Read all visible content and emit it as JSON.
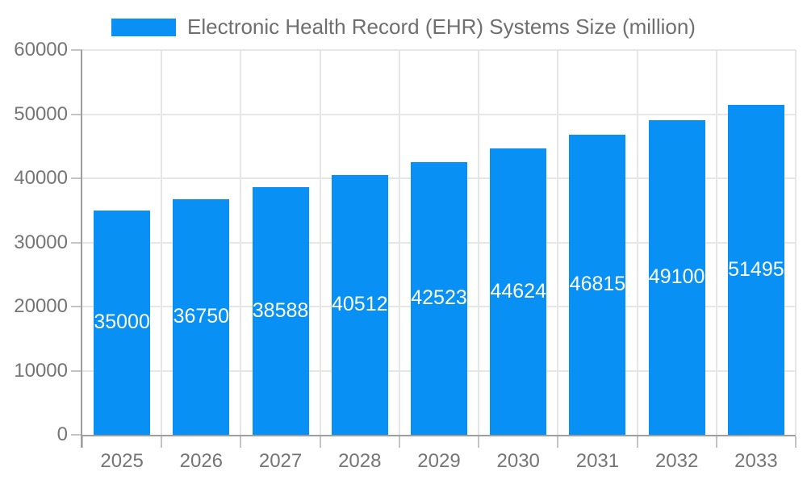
{
  "colors": {
    "bar": "#0890f4",
    "axis_line": "#9e9e9e",
    "gridline": "#e6e6e6",
    "tick_mark": "#c4c4c4",
    "tick_text": "#757575",
    "legend_text": "#6f6f6f",
    "bar_label_text": "#ffffff",
    "background": "#ffffff"
  },
  "legend": {
    "label": "Electronic Health Record (EHR) Systems Size (million)"
  },
  "chart_data": {
    "type": "bar",
    "title": "Electronic Health Record (EHR) Systems Size (million)",
    "categories": [
      "2025",
      "2026",
      "2027",
      "2028",
      "2029",
      "2030",
      "2031",
      "2032",
      "2033"
    ],
    "values": [
      35000,
      36750,
      38588,
      40512,
      42523,
      44624,
      46815,
      49100,
      51495
    ],
    "series_name": "Electronic Health Record (EHR) Systems Size (million)",
    "xlabel": "",
    "ylabel": "",
    "ylim": [
      0,
      60000
    ],
    "yticks": [
      0,
      10000,
      20000,
      30000,
      40000,
      50000,
      60000
    ],
    "grid": true,
    "legend_position": "top",
    "bar_labels_shown": true,
    "bar_label_placement": "inside-center"
  }
}
